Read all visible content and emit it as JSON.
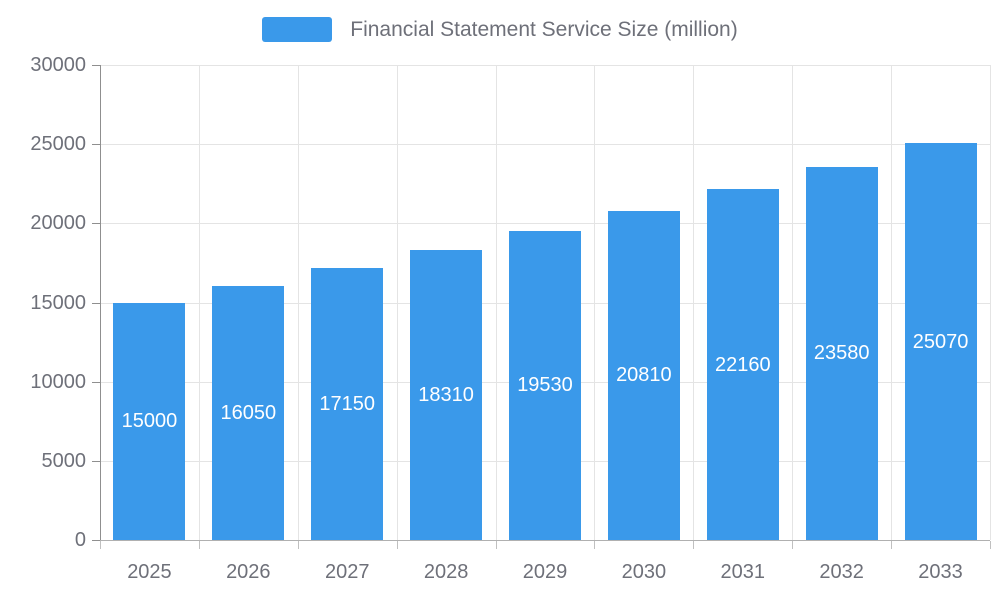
{
  "legend": {
    "label": "Financial Statement Service Size (million)"
  },
  "colors": {
    "bar": "#3A99EA",
    "bar_label": "#FFFFFF",
    "grid_line": "#E4E4E4",
    "axis_line_y": "#8F8F8F",
    "axis_line_x": "#B0B0B0",
    "tick_y": "#8F8F8F",
    "tick_x": "#C0C0C0",
    "text": "#6E7079"
  },
  "chart_data": {
    "type": "bar",
    "title": "Financial Statement Service Size (million)",
    "series_name": "Financial Statement Service Size (million)",
    "categories": [
      "2025",
      "2026",
      "2027",
      "2028",
      "2029",
      "2030",
      "2031",
      "2032",
      "2033"
    ],
    "values": [
      15000,
      16050,
      17150,
      18310,
      19530,
      20810,
      22160,
      23580,
      25070
    ],
    "bar_value_labels": [
      "15000",
      "16050",
      "17150",
      "18310",
      "19530",
      "20810",
      "22160",
      "23580",
      "25070"
    ],
    "xlabel": "",
    "ylabel": "",
    "ylim": [
      0,
      30000
    ],
    "ytick_step": 5000,
    "yticks": [
      0,
      5000,
      10000,
      15000,
      20000,
      25000,
      30000
    ],
    "ytick_labels": [
      "0",
      "5000",
      "10000",
      "15000",
      "20000",
      "25000",
      "30000"
    ],
    "grid": true,
    "legend_position": "top",
    "value_label_position": "inside-center"
  }
}
